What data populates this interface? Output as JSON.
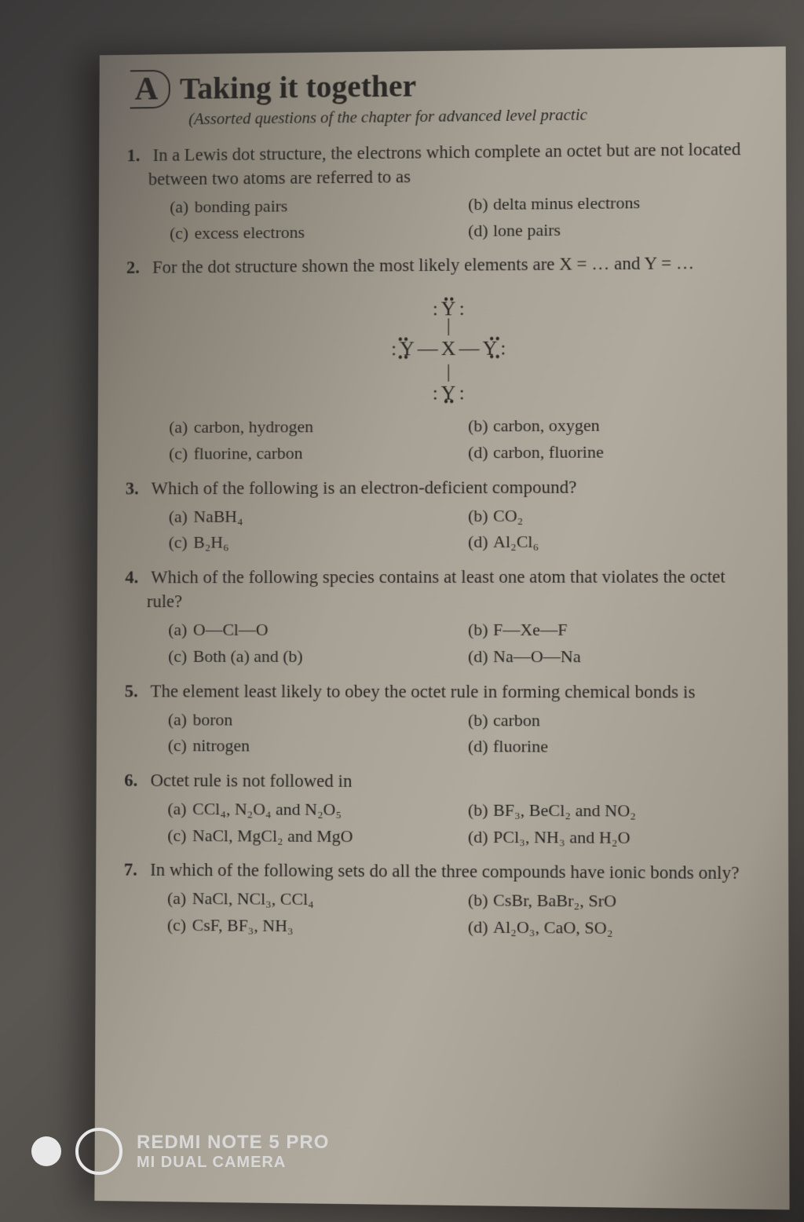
{
  "section": {
    "letter": "A",
    "title": "Taking it together",
    "subtitle": "(Assorted questions of the chapter for advanced level practic"
  },
  "questions": [
    {
      "num": "1.",
      "text": "In a Lewis dot structure, the electrons which complete an octet but are not located between two atoms are referred to as",
      "opts": {
        "a": "bonding pairs",
        "b": "delta minus electrons",
        "c": "excess electrons",
        "d": "lone pairs"
      }
    },
    {
      "num": "2.",
      "text": "For the dot structure shown the most likely elements are X = … and Y = …",
      "opts": {
        "a": "carbon, hydrogen",
        "b": "carbon, oxygen",
        "c": "fluorine, carbon",
        "d": "carbon, fluorine"
      }
    },
    {
      "num": "3.",
      "text": "Which of the following is an electron-deficient compound?",
      "opts": {
        "a": "NaBH₄",
        "b": "CO₂",
        "c": "B₂H₆",
        "d": "Al₂Cl₆"
      }
    },
    {
      "num": "4.",
      "text": "Which of the following species contains at least one atom that violates the octet rule?",
      "opts": {
        "a": "O—Cl—O",
        "b": "F—Xe—F",
        "c": "Both (a) and (b)",
        "d": "Na—O—Na"
      }
    },
    {
      "num": "5.",
      "text": "The element least likely to obey the octet rule in forming chemical bonds is",
      "opts": {
        "a": "boron",
        "b": "carbon",
        "c": "nitrogen",
        "d": "fluorine"
      }
    },
    {
      "num": "6.",
      "text": "Octet rule is not followed in",
      "opts": {
        "a": "CCl₄, N₂O₄ and N₂O₅",
        "b": "BF₃, BeCl₂ and NO₂",
        "c": "NaCl, MgCl₂ and MgO",
        "d": "PCl₃, NH₃ and H₂O"
      }
    },
    {
      "num": "7.",
      "text": "In which of the following sets do all the three compounds have ionic bonds only?",
      "opts": {
        "a": "NaCl, NCl₃, CCl₄",
        "b": "CsBr, BaBr₂, SrO",
        "c": "CsF, BF₃, NH₃",
        "d": "Al₂O₃, CaO, SO₂"
      }
    }
  ],
  "lewis": {
    "X": "X",
    "Y": "Y"
  },
  "watermark": {
    "line1": "REDMI NOTE 5 PRO",
    "line2": "MI DUAL CAMERA"
  }
}
